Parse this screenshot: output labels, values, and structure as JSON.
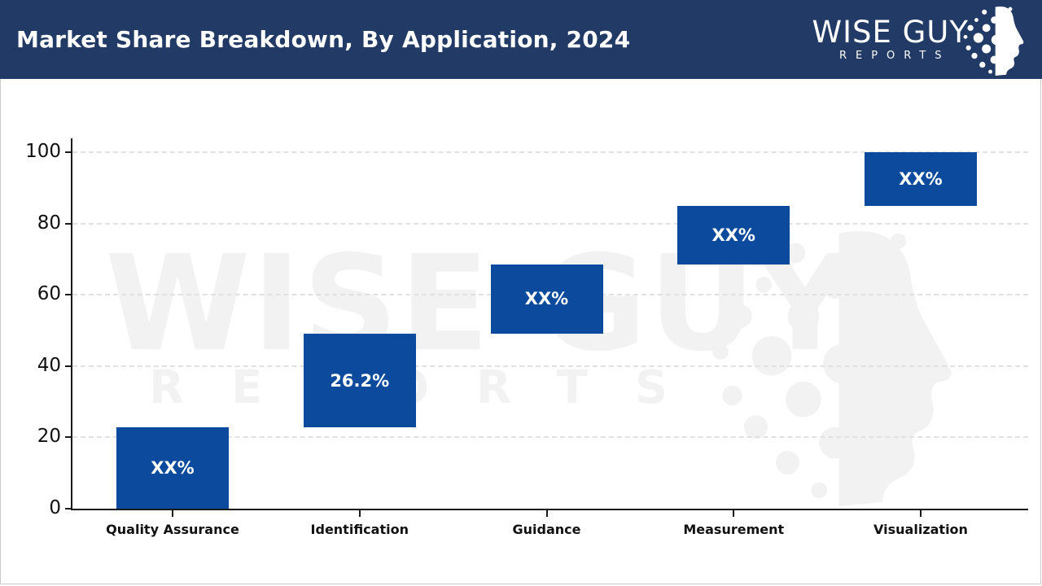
{
  "header": {
    "title": "Market Share Breakdown, By Application, 2024",
    "logo": {
      "line1": "WISE GUY",
      "line2": "REPORTS"
    }
  },
  "watermark": {
    "line1": "WISE GUY",
    "line2": "REPORTS"
  },
  "colors": {
    "header_bg": "#213a66",
    "bar": "#0b4a9c",
    "bar_label": "#ffffff",
    "axis": "#1a1a1a",
    "gridline": "#e1e1e1",
    "tick_label": "#111111",
    "watermark": "#f2f2f2",
    "page_border": "#cccccc"
  },
  "chart_data": {
    "type": "bar",
    "subtype": "waterfall",
    "title": "Market Share Breakdown, By Application, 2024",
    "categories": [
      "Quality Assurance",
      "Identification",
      "Guidance",
      "Measurement",
      "Visualization"
    ],
    "values": [
      22.8,
      26.2,
      19.6,
      16.4,
      15.0
    ],
    "cumulative_start": [
      0,
      22.8,
      49.0,
      68.6,
      85.0
    ],
    "cumulative_end": [
      22.8,
      49.0,
      68.6,
      85.0,
      100.0
    ],
    "bar_labels": [
      "XX%",
      "26.2%",
      "XX%",
      "XX%",
      "XX%"
    ],
    "yticks": [
      0,
      20,
      40,
      60,
      80,
      100
    ],
    "ylim": [
      0,
      104
    ],
    "xlabel": "",
    "ylabel": "",
    "grid": "horizontal-dashed",
    "legend": "none",
    "unit": "%"
  }
}
